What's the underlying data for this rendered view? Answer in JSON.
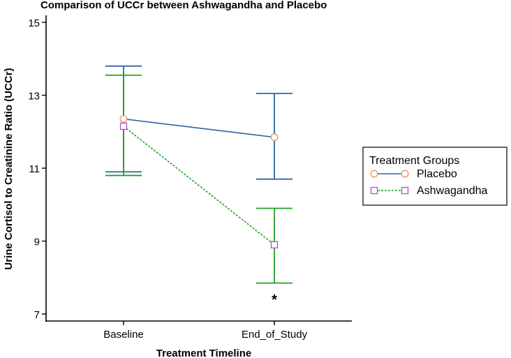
{
  "chart_data": {
    "type": "line",
    "title": "Comparison of UCCr between Ashwagandha and Placebo",
    "xlabel": "Treatment Timeline",
    "ylabel": "Urine Cortisol to Creatinine Ratio (UCCr)",
    "categories": [
      "Baseline",
      "End_of_Study"
    ],
    "ylim": [
      7,
      15
    ],
    "yticks": [
      7,
      9,
      11,
      13,
      15
    ],
    "grid": false,
    "legend": {
      "title": "Treatment Groups",
      "placement": "right"
    },
    "series": [
      {
        "name": "Placebo",
        "values": [
          12.35,
          11.85
        ],
        "error_low": [
          10.9,
          10.7
        ],
        "error_high": [
          13.8,
          13.05
        ],
        "color": "#2f64a6",
        "marker": "circle",
        "marker_color": "#e8935a",
        "line_style": "solid"
      },
      {
        "name": "Ashwagandha",
        "values": [
          12.15,
          8.9
        ],
        "error_low": [
          10.8,
          7.85
        ],
        "error_high": [
          13.55,
          9.9
        ],
        "color": "#21a021",
        "marker": "square",
        "marker_color": "#b050c8",
        "line_style": "dashed"
      }
    ],
    "annotations": [
      {
        "text": "*",
        "x": "End_of_Study",
        "y": 7.5
      }
    ]
  }
}
